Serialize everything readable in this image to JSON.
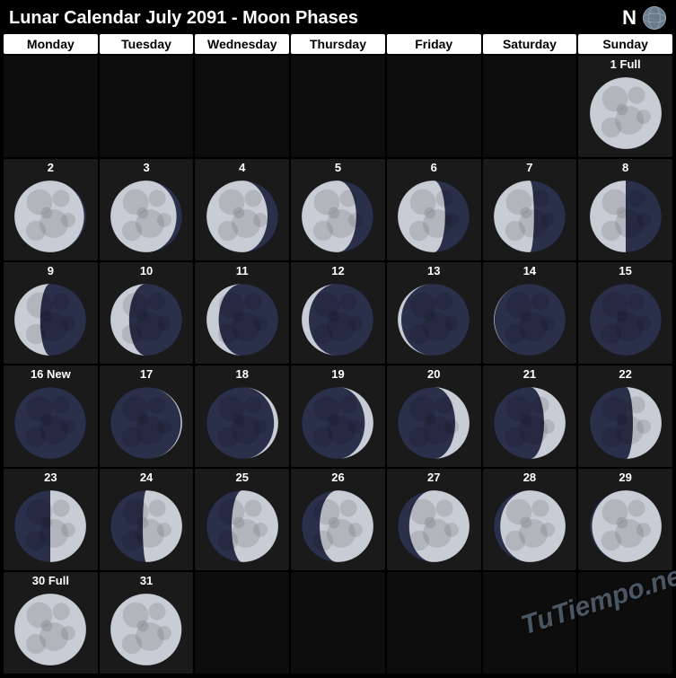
{
  "title": "Lunar Calendar July 2091 - Moon Phases",
  "hemisphere": "N",
  "weekdays": [
    "Monday",
    "Tuesday",
    "Wednesday",
    "Thursday",
    "Friday",
    "Saturday",
    "Sunday"
  ],
  "watermark": "TuTiempo.net",
  "colors": {
    "bg": "#000000",
    "cell_bg": "#1a1a1a",
    "empty_bg": "#0d0d0d",
    "weekday_bg": "#ffffff",
    "weekday_fg": "#000000",
    "text": "#ffffff",
    "moon_light": "#c8ccd4",
    "moon_dark": "#2a2f4a",
    "moon_shadow": "#1f2238"
  },
  "moon_size": 80,
  "days": [
    {
      "empty": true
    },
    {
      "empty": true
    },
    {
      "empty": true
    },
    {
      "empty": true
    },
    {
      "empty": true
    },
    {
      "empty": true
    },
    {
      "n": 1,
      "label": "1 Full",
      "illum": 1.0,
      "waxing": false
    },
    {
      "n": 2,
      "label": "2",
      "illum": 0.97,
      "waxing": false
    },
    {
      "n": 3,
      "label": "3",
      "illum": 0.92,
      "waxing": false
    },
    {
      "n": 4,
      "label": "4",
      "illum": 0.85,
      "waxing": false
    },
    {
      "n": 5,
      "label": "5",
      "illum": 0.76,
      "waxing": false
    },
    {
      "n": 6,
      "label": "6",
      "illum": 0.66,
      "waxing": false
    },
    {
      "n": 7,
      "label": "7",
      "illum": 0.56,
      "waxing": false
    },
    {
      "n": 8,
      "label": "8",
      "illum": 0.5,
      "waxing": false
    },
    {
      "n": 9,
      "label": "9",
      "illum": 0.36,
      "waxing": false
    },
    {
      "n": 10,
      "label": "10",
      "illum": 0.26,
      "waxing": false
    },
    {
      "n": 11,
      "label": "11",
      "illum": 0.17,
      "waxing": false
    },
    {
      "n": 12,
      "label": "12",
      "illum": 0.1,
      "waxing": false
    },
    {
      "n": 13,
      "label": "13",
      "illum": 0.05,
      "waxing": false
    },
    {
      "n": 14,
      "label": "14",
      "illum": 0.01,
      "waxing": false
    },
    {
      "n": 15,
      "label": "15",
      "illum": 0.0,
      "waxing": false
    },
    {
      "n": 16,
      "label": "16 New",
      "illum": 0.0,
      "waxing": true
    },
    {
      "n": 17,
      "label": "17",
      "illum": 0.02,
      "waxing": true
    },
    {
      "n": 18,
      "label": "18",
      "illum": 0.06,
      "waxing": true
    },
    {
      "n": 19,
      "label": "19",
      "illum": 0.12,
      "waxing": true
    },
    {
      "n": 20,
      "label": "20",
      "illum": 0.2,
      "waxing": true
    },
    {
      "n": 21,
      "label": "21",
      "illum": 0.3,
      "waxing": true
    },
    {
      "n": 22,
      "label": "22",
      "illum": 0.4,
      "waxing": true
    },
    {
      "n": 23,
      "label": "23",
      "illum": 0.5,
      "waxing": true
    },
    {
      "n": 24,
      "label": "24",
      "illum": 0.55,
      "waxing": true
    },
    {
      "n": 25,
      "label": "25",
      "illum": 0.65,
      "waxing": true
    },
    {
      "n": 26,
      "label": "26",
      "illum": 0.75,
      "waxing": true
    },
    {
      "n": 27,
      "label": "27",
      "illum": 0.84,
      "waxing": true
    },
    {
      "n": 28,
      "label": "28",
      "illum": 0.91,
      "waxing": true
    },
    {
      "n": 29,
      "label": "29",
      "illum": 0.97,
      "waxing": true
    },
    {
      "n": 30,
      "label": "30 Full",
      "illum": 1.0,
      "waxing": true
    },
    {
      "n": 31,
      "label": "31",
      "illum": 0.99,
      "waxing": false
    },
    {
      "empty": true
    },
    {
      "empty": true
    },
    {
      "empty": true
    },
    {
      "empty": true
    },
    {
      "empty": true
    }
  ]
}
